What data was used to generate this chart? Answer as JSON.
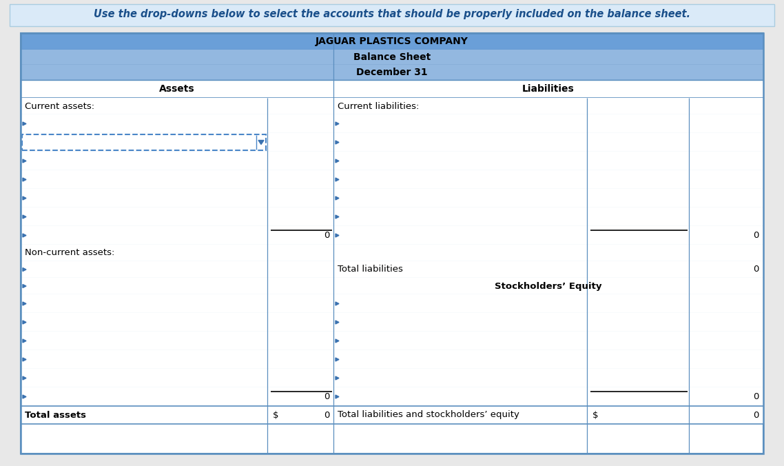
{
  "title_instruction": "Use the drop-downs below to select the accounts that should be properly included on the balance sheet.",
  "company_name": "JAGUAR PLASTICS COMPANY",
  "sheet_title": "Balance Sheet",
  "date_title": "December 31",
  "col_headers_left": "Assets",
  "col_headers_right": "Liabilities",
  "section_current_assets": "Current assets:",
  "section_noncurrent_assets": "Non-current assets:",
  "section_current_liabilities": "Current liabilities:",
  "section_total_liabilities": "Total liabilities",
  "section_stockholders_equity": "Stockholders’ Equity",
  "total_assets_label": "Total assets",
  "total_liab_equity_label": "Total liabilities and stockholders’ equity",
  "dollar_sign": "$",
  "zero_value": "0",
  "header_bg_dark": "#6a9fd8",
  "header_bg_light": "#93b8e0",
  "instruction_bg": "#daeaf8",
  "instruction_text_color": "#1a4f8a",
  "table_border_color": "#5b8fbf",
  "row_line_color": "#7aadd4",
  "white": "#ffffff",
  "dropdown_border": "#4a86c8",
  "arrow_color": "#3a72b0",
  "black": "#000000",
  "gray_bg": "#d8d8d8",
  "fig_bg": "#e8e8e8",
  "fig_width": 11.38,
  "fig_height": 6.76
}
